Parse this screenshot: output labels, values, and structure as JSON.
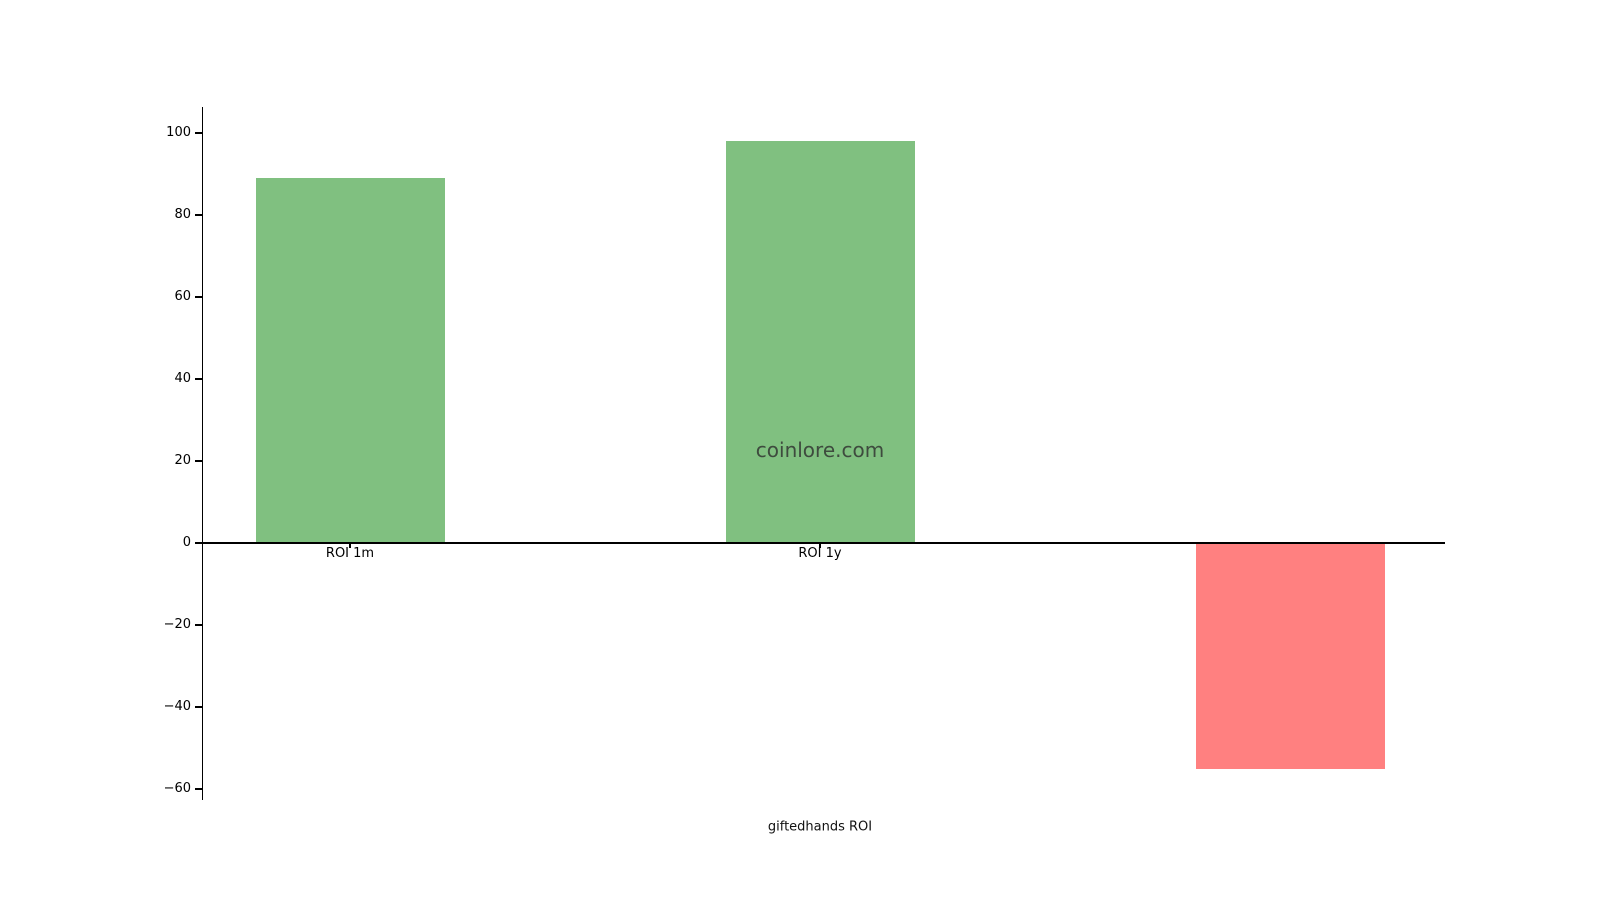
{
  "figure": {
    "background": "#ffffff",
    "axis_color": "#000000"
  },
  "chart_data": {
    "type": "bar",
    "title": "giftedhands ROI",
    "watermark": "coinlore.com",
    "categories": [
      "ROI 1m",
      "ROI 1y",
      ""
    ],
    "values": [
      89,
      98,
      -55
    ],
    "bar_colors": [
      "#80c080",
      "#80c080",
      "#ff8080"
    ],
    "positive_color": "#80c080",
    "negative_color": "#ff8080",
    "yticks": [
      100,
      80,
      60,
      40,
      20,
      0,
      -20,
      -40,
      -60
    ],
    "ylim": [
      -62.8,
      106.3
    ],
    "xlabel": "",
    "ylabel": "",
    "grid": false,
    "legend": false
  }
}
